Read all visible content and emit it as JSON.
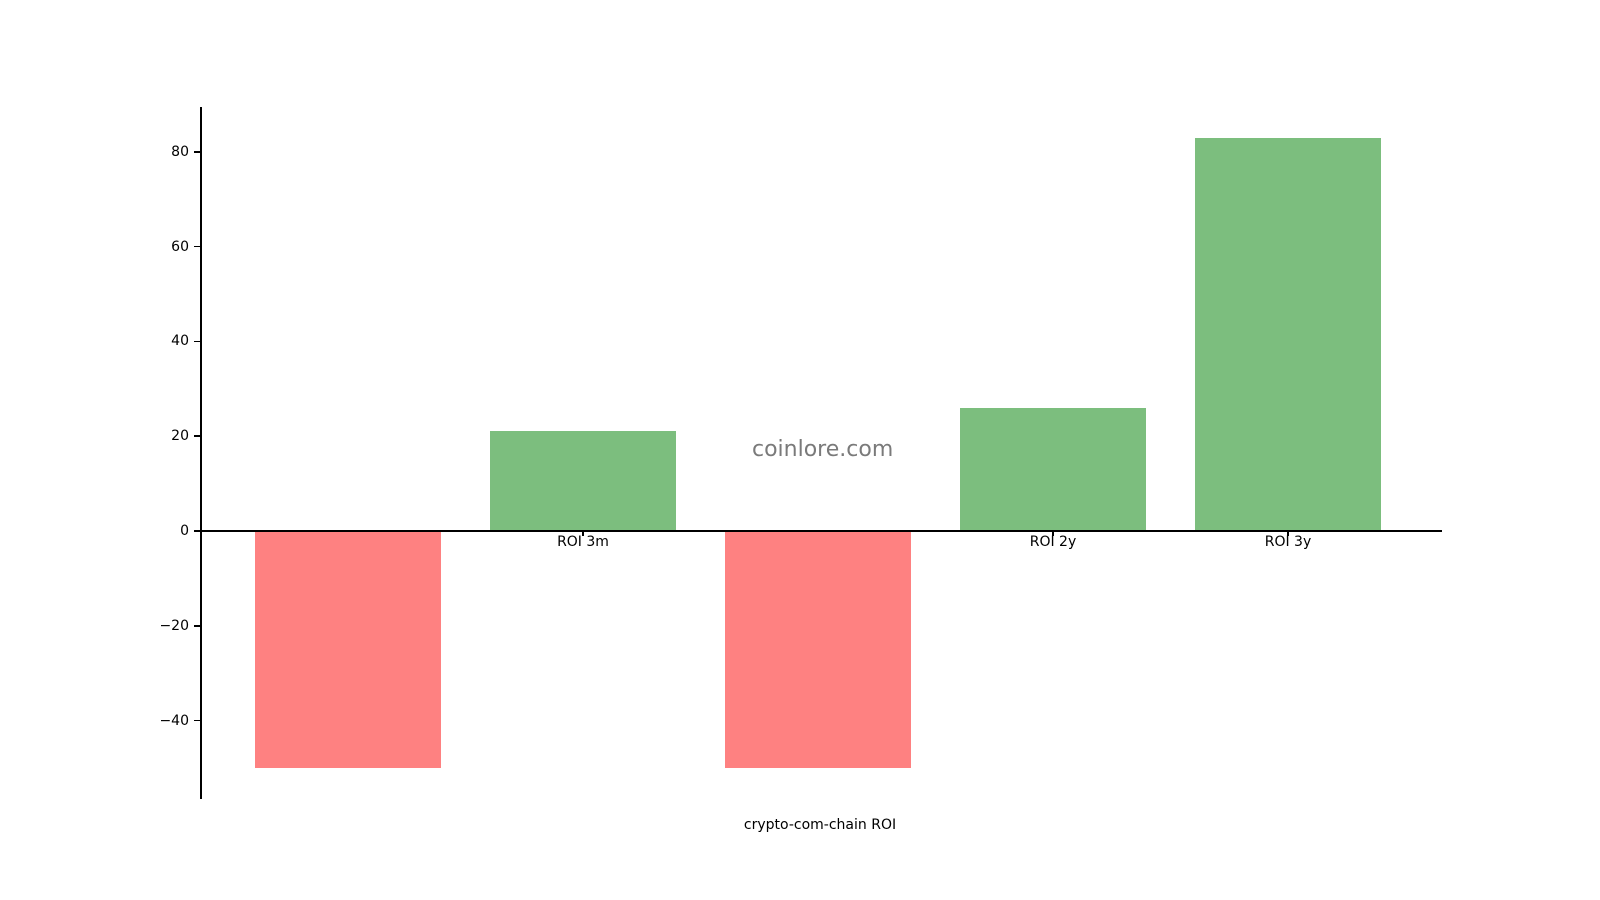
{
  "watermark": {
    "text": "coinlore.com"
  },
  "chart_data": {
    "type": "bar",
    "title": "crypto-com-chain ROI",
    "xlabel": "",
    "ylabel": "",
    "categories": [
      "",
      "ROI 3m",
      "",
      "ROI 2y",
      "ROI 3y"
    ],
    "values": [
      -50,
      21,
      -50,
      26,
      83
    ],
    "y_ticks": [
      80,
      60,
      40,
      20,
      0,
      -20,
      -40
    ],
    "y_tick_labels": [
      "80",
      "60",
      "40",
      "20",
      "0",
      "−20",
      "−40"
    ],
    "ylim": [
      -56,
      90
    ],
    "grid": false,
    "legend": "none",
    "bar_colors": {
      "positive": "#7cbe7e",
      "negative": "#fe8181"
    },
    "axis_color": "#000000",
    "text_color": "#000000",
    "watermark_color": "#7a7a7a",
    "watermark_text": "coinlore.com"
  }
}
